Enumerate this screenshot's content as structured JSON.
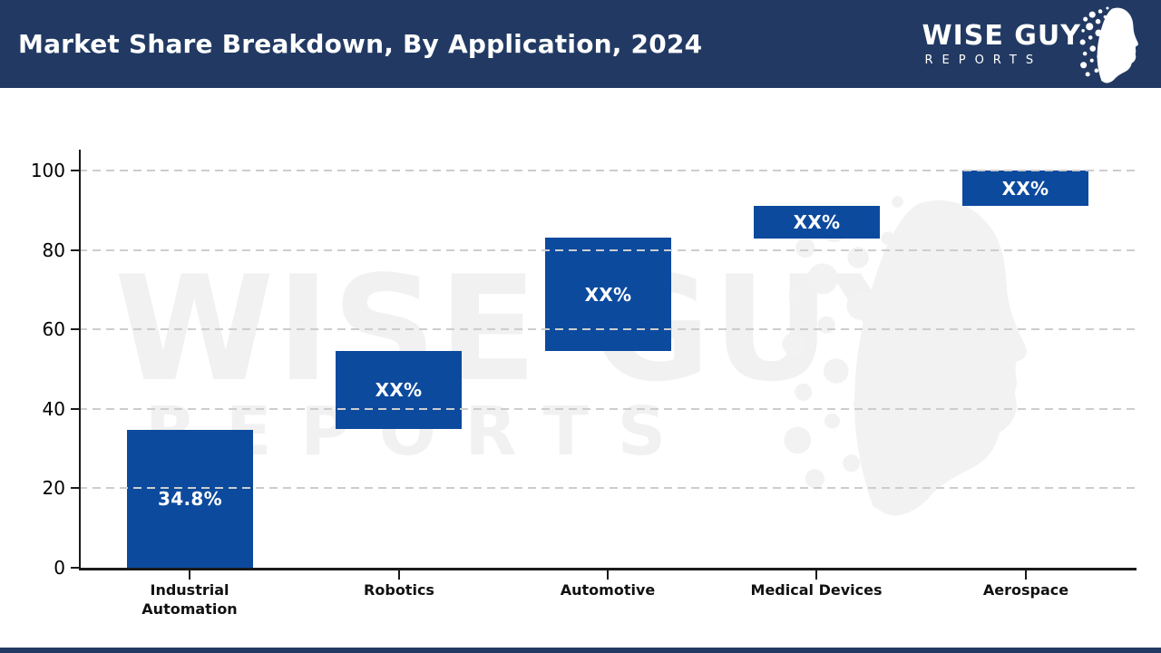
{
  "header": {
    "title": "Market Share Breakdown, By Application, 2024",
    "logo": {
      "name": "WISE GUY",
      "subtitle": "REPORTS"
    }
  },
  "watermark": {
    "line1": "WISE GUY",
    "line2": "REPORTS"
  },
  "colors": {
    "header_bg": "#223A63",
    "footer_bg": "#223A63",
    "bar": "#0C4A9E",
    "gridline": "#CDCDCD",
    "axis": "#1A1A1A",
    "bar_label_text": "#FFFFFF",
    "tick_text": "#000000",
    "watermark": "#F1F1F1"
  },
  "chart_data": {
    "type": "bar",
    "subtype": "waterfall",
    "title": "Market Share Breakdown, By Application, 2024",
    "categories": [
      "Industrial Automation",
      "Robotics",
      "Automotive",
      "Medical Devices",
      "Aerospace"
    ],
    "category_lines": [
      [
        "Industrial",
        "Automation"
      ],
      [
        "Robotics"
      ],
      [
        "Automotive"
      ],
      [
        "Medical Devices"
      ],
      [
        "Aerospace"
      ]
    ],
    "segments": [
      {
        "category": "Industrial Automation",
        "start": 0,
        "end": 34.8,
        "label": "34.8%"
      },
      {
        "category": "Robotics",
        "start": 34.8,
        "end": 54.5,
        "label": "XX%"
      },
      {
        "category": "Automotive",
        "start": 54.5,
        "end": 83.0,
        "label": "XX%"
      },
      {
        "category": "Medical Devices",
        "start": 83.0,
        "end": 91.2,
        "label": "XX%"
      },
      {
        "category": "Aerospace",
        "start": 91.2,
        "end": 100.0,
        "label": "XX%"
      }
    ],
    "xlabel": "",
    "ylabel": "",
    "ylim": [
      0,
      100
    ],
    "yticks": [
      0,
      20,
      40,
      60,
      80,
      100
    ],
    "grid": "horizontal-dashed",
    "legend": false,
    "bar_color": "#0C4A9E"
  }
}
